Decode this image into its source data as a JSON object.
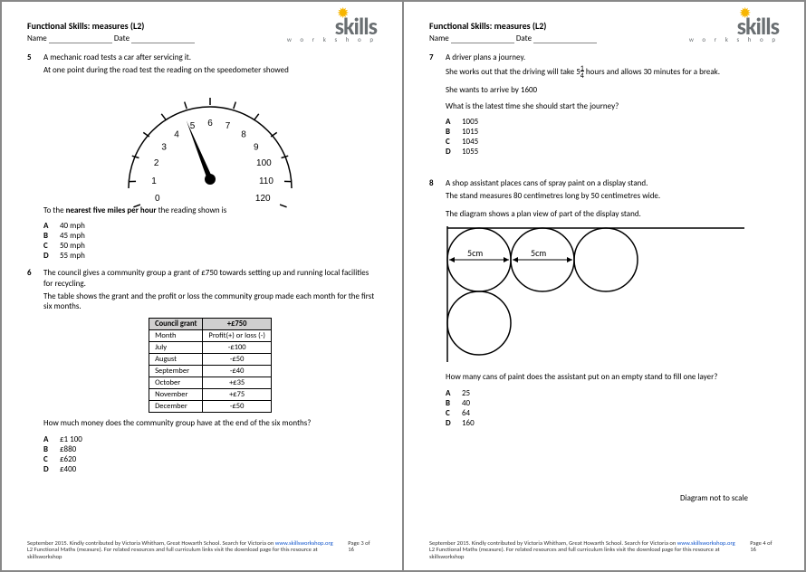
{
  "header": {
    "title": "Functional Skills: measures (L2)",
    "name_label": "Name",
    "date_label": "Date",
    "logo_main": "skills",
    "logo_sub": "w o r k s h o p"
  },
  "page_left": {
    "q5": {
      "num": "5",
      "line1": "A mechanic road tests a car after servicing it.",
      "line2": "At one point during the road test the reading on the speedometer showed",
      "line3a": "To the ",
      "line3b": "nearest five miles per hour ",
      "line3c": "the reading shown is",
      "speedo": {
        "ticks": [
          "0",
          "1",
          "2",
          "3",
          "4",
          "5",
          "6",
          "7",
          "8",
          "9",
          "100",
          "110",
          "120"
        ],
        "needle_angle_deg": 112
      },
      "choices": [
        {
          "l": "A",
          "v": "40 mph"
        },
        {
          "l": "B",
          "v": "45 mph"
        },
        {
          "l": "C",
          "v": "50 mph"
        },
        {
          "l": "D",
          "v": "55 mph"
        }
      ]
    },
    "q6": {
      "num": "6",
      "line1": "The council gives a community group a grant of £750 towards setting up and running local facilities for recycling.",
      "line2": "The table shows the grant and the profit or loss the community group made each month for the first six months.",
      "table": {
        "h1": "Council grant",
        "h2": "+£750",
        "col1": "Month",
        "col2": "Profit(+) or loss (-)",
        "rows": [
          [
            "July",
            "-£100"
          ],
          [
            "August",
            "-£50"
          ],
          [
            "September",
            "-£40"
          ],
          [
            "October",
            "+£35"
          ],
          [
            "November",
            "+£75"
          ],
          [
            "December",
            "-£50"
          ]
        ]
      },
      "line3": "How much money does the community group have at the end of the six months?",
      "choices": [
        {
          "l": "A",
          "v": "£1 100"
        },
        {
          "l": "B",
          "v": "£880"
        },
        {
          "l": "C",
          "v": "£620"
        },
        {
          "l": "D",
          "v": "£400"
        }
      ]
    },
    "footer": {
      "l1a": "September 2015. Kindly contributed by Victoria Whitham, Great Howarth School. Search for Victoria on ",
      "l1b": "www.skillsworkshop.org",
      "l2a": "L2 Functional Maths (measure). For related resources and full curriculum links visit the download page for this resource at skillsworkshop",
      "page": "Page 3 of 16"
    }
  },
  "page_right": {
    "q7": {
      "num": "7",
      "line1": "A driver plans a journey.",
      "line2a": "She works out that the driving will take 5",
      "line2_frac_n": "1",
      "line2_frac_d": "4",
      "line2b": " hours and allows 30 minutes for a break.",
      "line3": "She wants to arrive by 1600",
      "line4": "What is the latest time she should start the journey?",
      "choices": [
        {
          "l": "A",
          "v": "1005"
        },
        {
          "l": "B",
          "v": "1015"
        },
        {
          "l": "C",
          "v": "1045"
        },
        {
          "l": "D",
          "v": "1055"
        }
      ]
    },
    "q8": {
      "num": "8",
      "line1": "A shop assistant places cans of spray paint on a display stand.",
      "line2": "The stand measures 80 centimetres long by 50 centimetres wide.",
      "line3": "The diagram shows a plan view of part of the display stand.",
      "dim_label": "5cm",
      "note": "Diagram not to scale",
      "line4": "How many cans of paint does the assistant put on an empty stand to fill one layer?",
      "choices": [
        {
          "l": "A",
          "v": "25"
        },
        {
          "l": "B",
          "v": "40"
        },
        {
          "l": "C",
          "v": "64"
        },
        {
          "l": "D",
          "v": "160"
        }
      ]
    },
    "footer": {
      "l1a": "September 2015. Kindly contributed by Victoria Whitham, Great Howarth School. Search for Victoria on ",
      "l1b": "www.skillsworkshop.org",
      "l2a": "L2 Functional Maths (measure). For related resources and full curriculum links visit the download page for this resource at skillsworkshop",
      "page": "Page 4 of 16"
    }
  }
}
